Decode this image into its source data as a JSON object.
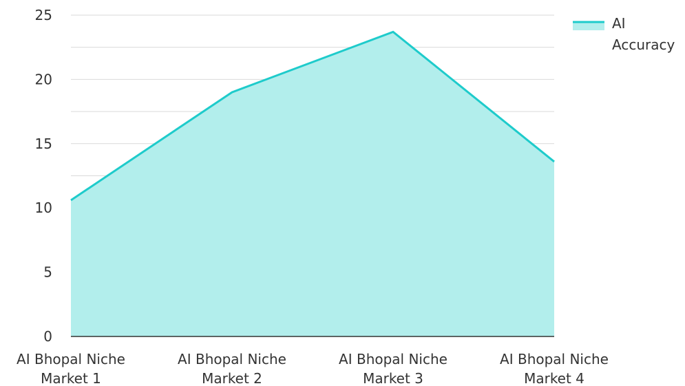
{
  "chart_data": {
    "type": "area",
    "categories": [
      "AI Bhopal Niche Market 1",
      "AI Bhopal Niche Market 2",
      "AI Bhopal Niche Market 3",
      "AI Bhopal Niche Market 4"
    ],
    "series": [
      {
        "name": "AI Accuracy",
        "values": [
          10.6,
          19.0,
          23.7,
          13.6
        ],
        "line_color": "#1ECBCB",
        "fill_color": "#B2EEEC"
      }
    ],
    "ylim": [
      0,
      25
    ],
    "y_ticks": [
      "0",
      "5",
      "10",
      "15",
      "20",
      "25"
    ],
    "x_tick_labels": [
      [
        "AI Bhopal Niche",
        "Market 1"
      ],
      [
        "AI Bhopal Niche",
        "Market 2"
      ],
      [
        "AI Bhopal Niche",
        "Market 3"
      ],
      [
        "AI Bhopal Niche",
        "Market 4"
      ]
    ],
    "legend": {
      "placement": "top-right",
      "label_lines": [
        "AI",
        "Accuracy"
      ]
    },
    "grid": true,
    "colors": {
      "gridline": "#D9D9D9",
      "axis": "#333333",
      "text": "#333333"
    }
  }
}
